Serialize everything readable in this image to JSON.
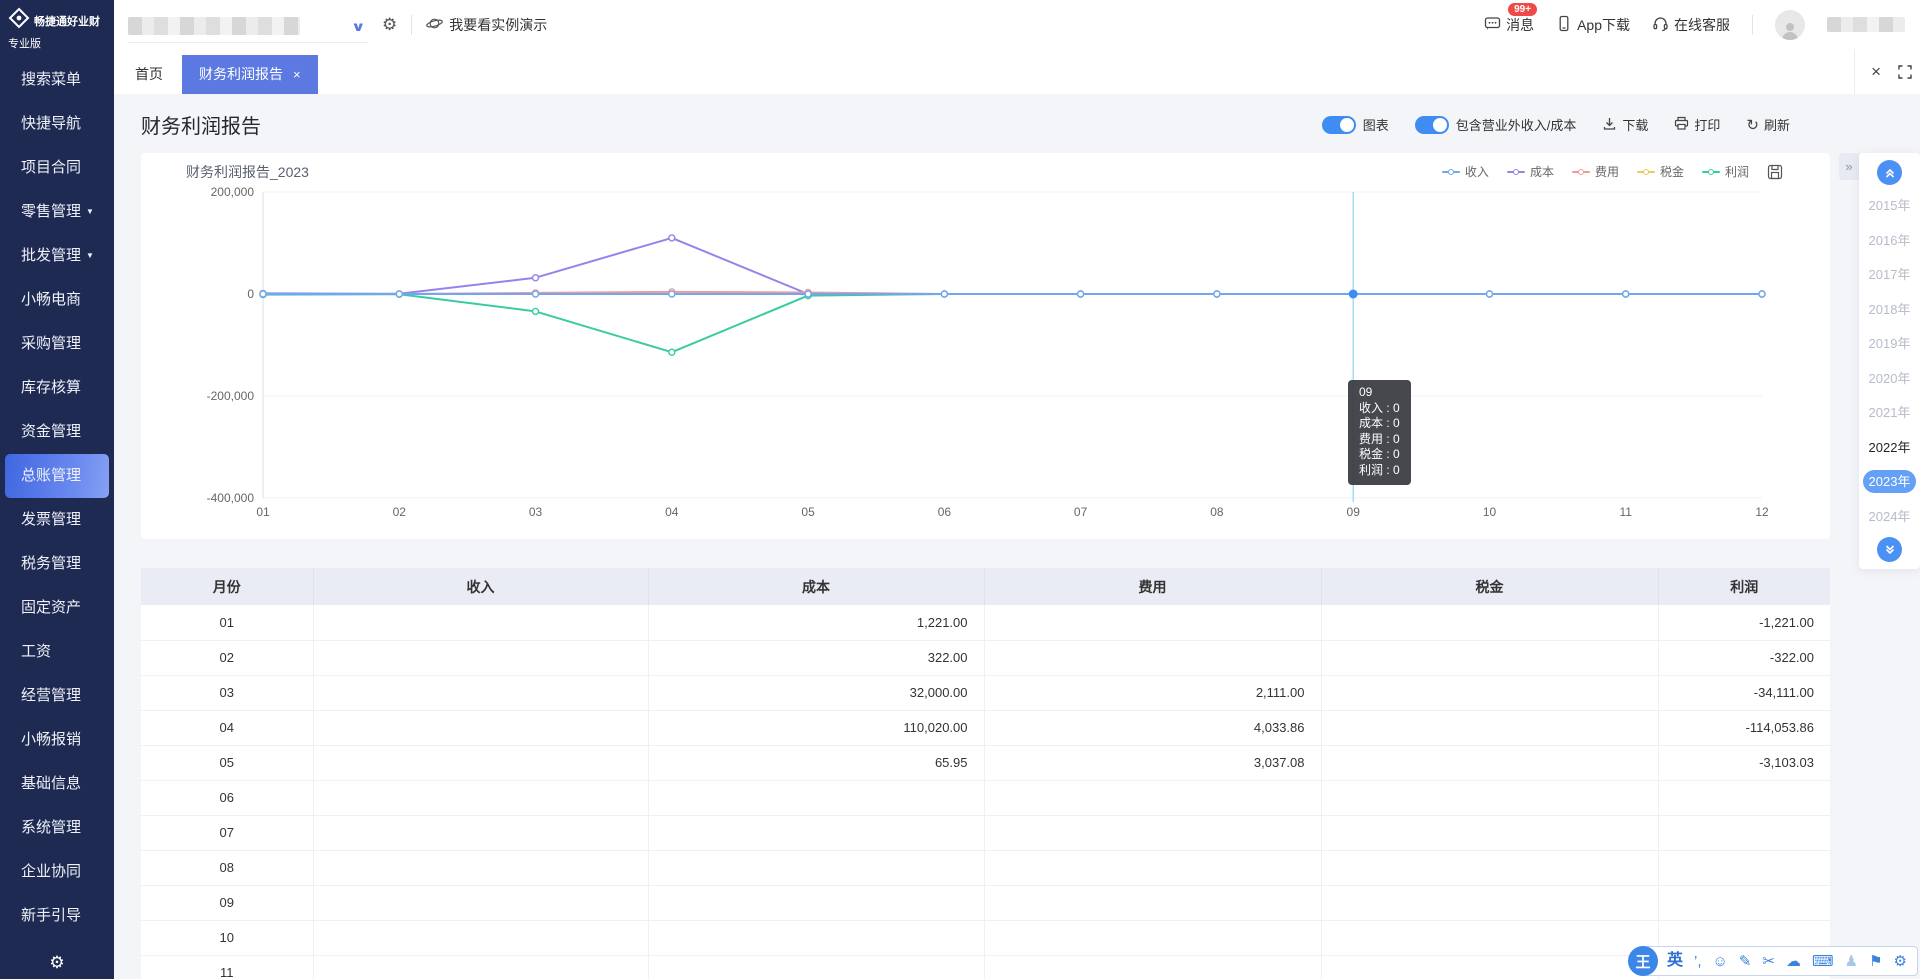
{
  "brand": {
    "name": "畅捷通好业财",
    "edition": "专业版"
  },
  "topbar": {
    "demo_label": "我要看实例演示",
    "messages_label": "消息",
    "messages_badge": "99+",
    "app_download_label": "App下载",
    "support_label": "在线客服"
  },
  "tabbar": {
    "tabs": [
      {
        "label": "首页",
        "active": false,
        "closable": false
      },
      {
        "label": "财务利润报告",
        "active": true,
        "closable": true
      }
    ],
    "close_glyph": "×",
    "collapse_glyph": "»"
  },
  "page": {
    "title": "财务利润报告",
    "chart_toggle_label": "图表",
    "include_toggle_label": "包含营业外收入/成本",
    "download_label": "下载",
    "print_label": "打印",
    "refresh_label": "刷新"
  },
  "sidebar": {
    "items": [
      {
        "label": "搜索菜单"
      },
      {
        "label": "快捷导航"
      },
      {
        "label": "项目合同"
      },
      {
        "label": "零售管理",
        "caret": true
      },
      {
        "label": "批发管理",
        "caret": true
      },
      {
        "label": "小畅电商"
      },
      {
        "label": "采购管理"
      },
      {
        "label": "库存核算"
      },
      {
        "label": "资金管理"
      },
      {
        "label": "总账管理",
        "active": true
      },
      {
        "label": "发票管理"
      },
      {
        "label": "税务管理"
      },
      {
        "label": "固定资产"
      },
      {
        "label": "工资"
      },
      {
        "label": "经营管理"
      },
      {
        "label": "小畅报销"
      },
      {
        "label": "基础信息"
      },
      {
        "label": "系统管理"
      },
      {
        "label": "企业协同"
      },
      {
        "label": "新手引导"
      }
    ]
  },
  "chart_data": {
    "type": "line",
    "title": "财务利润报告_2023",
    "categories": [
      "01",
      "02",
      "03",
      "04",
      "05",
      "06",
      "07",
      "08",
      "09",
      "10",
      "11",
      "12"
    ],
    "series": [
      {
        "name": "收入",
        "color": "#6fa7f3",
        "values": [
          0,
          0,
          0,
          0,
          0,
          0,
          0,
          0,
          0,
          0,
          0,
          0
        ]
      },
      {
        "name": "成本",
        "color": "#9583ec",
        "values": [
          1221,
          322,
          32000,
          110020,
          65.95,
          0,
          0,
          0,
          0,
          0,
          0,
          0
        ]
      },
      {
        "name": "费用",
        "color": "#f09a9a",
        "values": [
          0,
          0,
          2111,
          4033.86,
          3037.08,
          0,
          0,
          0,
          0,
          0,
          0,
          0
        ]
      },
      {
        "name": "税金",
        "color": "#eec95e",
        "values": [
          0,
          0,
          0,
          0,
          0,
          0,
          0,
          0,
          0,
          0,
          0,
          0
        ]
      },
      {
        "name": "利润",
        "color": "#3acba3",
        "values": [
          -1221,
          -322,
          -34111,
          -114053.86,
          -3103.03,
          0,
          0,
          0,
          0,
          0,
          0,
          0
        ]
      }
    ],
    "ylim": [
      -400000,
      200000
    ],
    "yticks": [
      200000,
      0,
      -200000,
      -400000
    ],
    "grid": true,
    "legend_position": "top-right",
    "highlight_index": 8,
    "highlight_color": "#3f8cf3",
    "crosshair_color": "#8fd4f3"
  },
  "tooltip": {
    "title": "09",
    "lines": [
      "收入 : 0",
      "成本 : 0",
      "费用 : 0",
      "税金 : 0",
      "利润 : 0"
    ]
  },
  "year_panel": {
    "years": [
      {
        "label": "2015年",
        "state": "dim"
      },
      {
        "label": "2016年",
        "state": "dim"
      },
      {
        "label": "2017年",
        "state": "dim"
      },
      {
        "label": "2018年",
        "state": "dim"
      },
      {
        "label": "2019年",
        "state": "dim"
      },
      {
        "label": "2020年",
        "state": "dim"
      },
      {
        "label": "2021年",
        "state": "dim"
      },
      {
        "label": "2022年",
        "state": "normal"
      },
      {
        "label": "2023年",
        "state": "selected"
      },
      {
        "label": "2024年",
        "state": "dim"
      }
    ]
  },
  "table": {
    "headers": [
      "月份",
      "收入",
      "成本",
      "费用",
      "税金",
      "利润"
    ],
    "rows": [
      [
        "01",
        "",
        "1,221.00",
        "",
        "",
        "-1,221.00"
      ],
      [
        "02",
        "",
        "322.00",
        "",
        "",
        "-322.00"
      ],
      [
        "03",
        "",
        "32,000.00",
        "2,111.00",
        "",
        "-34,111.00"
      ],
      [
        "04",
        "",
        "110,020.00",
        "4,033.86",
        "",
        "-114,053.86"
      ],
      [
        "05",
        "",
        "65.95",
        "3,037.08",
        "",
        "-3,103.03"
      ],
      [
        "06",
        "",
        "",
        "",
        "",
        ""
      ],
      [
        "07",
        "",
        "",
        "",
        "",
        ""
      ],
      [
        "08",
        "",
        "",
        "",
        "",
        ""
      ],
      [
        "09",
        "",
        "",
        "",
        "",
        ""
      ],
      [
        "10",
        "",
        "",
        "",
        "",
        ""
      ],
      [
        "11",
        "",
        "",
        "",
        "",
        ""
      ]
    ]
  },
  "ime_bar": {
    "logo_glyph": "王",
    "icons": [
      {
        "name": "english-mode-icon",
        "glyph": "英",
        "cls": "en"
      },
      {
        "name": "punctuation-icon",
        "glyph": "’,"
      },
      {
        "name": "emoji-icon",
        "glyph": "☺"
      },
      {
        "name": "pencil-icon",
        "glyph": "✎"
      },
      {
        "name": "scissors-icon",
        "glyph": "✂"
      },
      {
        "name": "cloud-icon",
        "glyph": "☁"
      },
      {
        "name": "keyboard-icon",
        "glyph": "⌨"
      },
      {
        "name": "person-icon",
        "glyph": "♟",
        "cls": "light"
      },
      {
        "name": "shirt-icon",
        "glyph": "⚑"
      },
      {
        "name": "gear-icon",
        "glyph": "⚙"
      }
    ]
  }
}
